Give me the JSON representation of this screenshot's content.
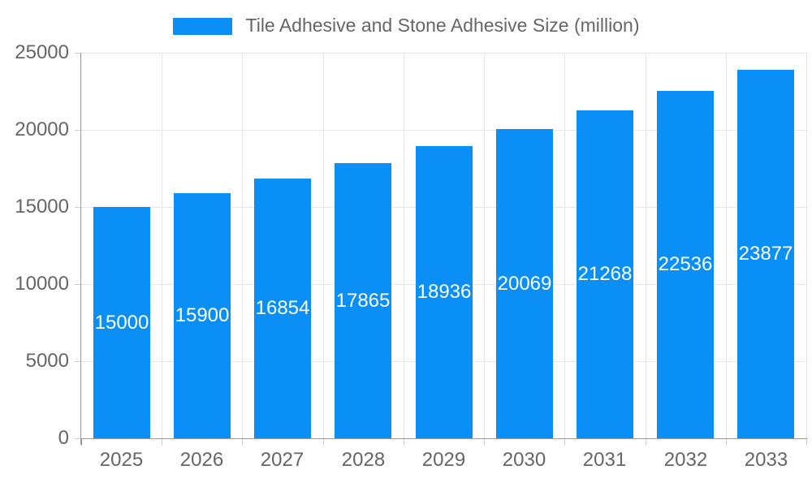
{
  "chart_data": {
    "type": "bar",
    "title": "Tile Adhesive and Stone Adhesive Size (million)",
    "legend": {
      "position": "top",
      "entries": [
        {
          "label": "Tile Adhesive and Stone Adhesive Size (million)",
          "swatch_color": "#0a8ff7"
        }
      ]
    },
    "categories": [
      "2025",
      "2026",
      "2027",
      "2028",
      "2029",
      "2030",
      "2031",
      "2032",
      "2033"
    ],
    "values": [
      15000,
      15900,
      16854,
      17865,
      18936,
      20069,
      21268,
      22536,
      23877
    ],
    "series": [
      {
        "name": "Tile Adhesive and Stone Adhesive Size (million)",
        "values": [
          15000,
          15900,
          16854,
          17865,
          18936,
          20069,
          21268,
          22536,
          23877
        ]
      }
    ],
    "xlabel": "",
    "ylabel": "",
    "ylim": [
      0,
      25000
    ],
    "ytick_step": 5000,
    "ytick_labels": [
      "0",
      "5000",
      "10000",
      "15000",
      "20000",
      "25000"
    ],
    "grid": true,
    "bar_labels_visible": true,
    "bar_label_position": "inside-middle",
    "colors": {
      "bar": "#0a8ff7",
      "bar_label_text": "#ffffff",
      "axis_line": "#999999",
      "grid_line": "#e6e6e6",
      "tick_mark": "#cccccc",
      "axis_text": "#666666",
      "legend_text": "#666666",
      "background": "#ffffff"
    }
  }
}
